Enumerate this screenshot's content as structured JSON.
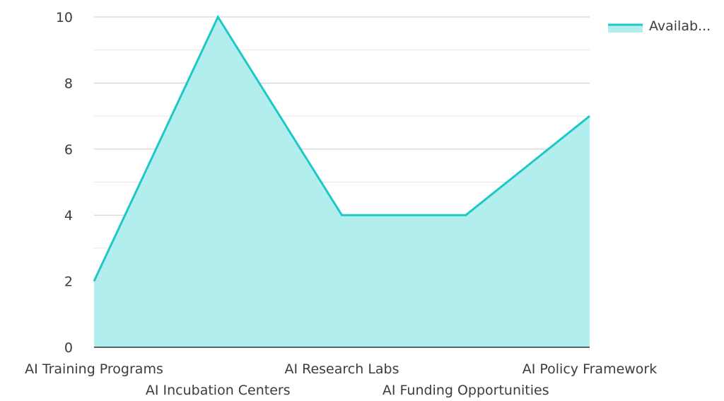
{
  "chart_data": {
    "type": "area",
    "categories": [
      "AI Training Programs",
      "AI Incubation Centers",
      "AI Research Labs",
      "AI Funding Opportunities",
      "AI Policy Framework"
    ],
    "series": [
      {
        "name": "Availab...",
        "values": [
          2,
          10,
          4,
          4,
          7
        ]
      }
    ],
    "ylim": [
      0,
      10
    ],
    "y_ticks": [
      0,
      2,
      4,
      6,
      8,
      10
    ],
    "grid": true,
    "legend_position": "top-right",
    "colors": {
      "line": "#1ec8c8",
      "fill": "#b2eeee",
      "grid_major": "#cccccc",
      "grid_minor": "#e6e6e6",
      "axis": "#333333"
    }
  }
}
